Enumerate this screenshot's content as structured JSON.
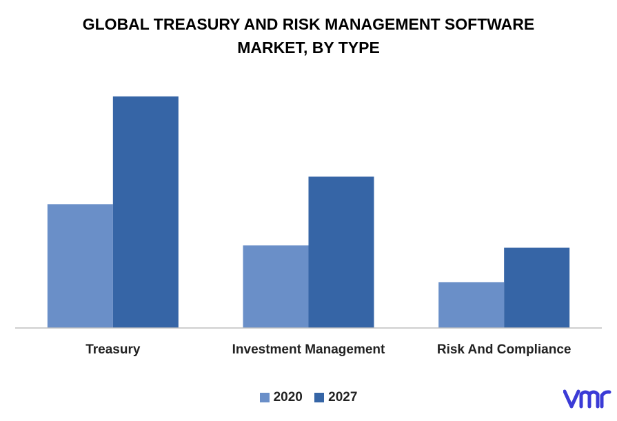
{
  "chart_data": {
    "type": "bar",
    "title_line1": "GLOBAL TREASURY AND RISK MANAGEMENT SOFTWARE",
    "title_line2": "MARKET, BY TYPE",
    "xlabel": "",
    "ylabel": "",
    "categories": [
      "Treasury",
      "Investment Management",
      "Risk And Compliance"
    ],
    "series": [
      {
        "name": "2020",
        "values": [
          5.4,
          3.6,
          2.0
        ],
        "color": "#6a8fc8"
      },
      {
        "name": "2027",
        "values": [
          10.1,
          6.6,
          3.5
        ],
        "color": "#3665a6"
      }
    ],
    "ylim": [
      0,
      11
    ],
    "grid": false,
    "legend": "bottom"
  },
  "logo": {
    "icon": "vmr-logo-icon",
    "color": "#3b3bd6"
  }
}
